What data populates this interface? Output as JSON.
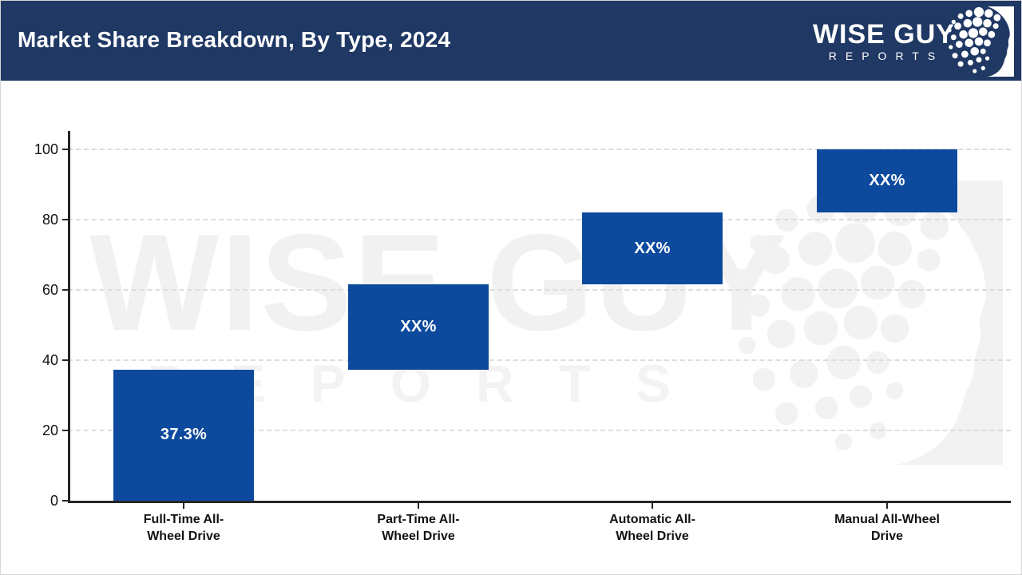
{
  "header": {
    "title": "Market Share Breakdown, By Type, 2024",
    "logo": {
      "name": "WISE GUY",
      "tagline": "REPORTS"
    }
  },
  "watermark": {
    "name": "WISE GUY",
    "tagline": "REPORTS"
  },
  "chart_data": {
    "type": "bar",
    "variant": "waterfall-floating-bars",
    "title": "Market Share Breakdown, By Type, 2024",
    "categories": [
      "Full-Time All-Wheel Drive",
      "Part-Time All-Wheel Drive",
      "Automatic All-Wheel Drive",
      "Manual All-Wheel Drive"
    ],
    "category_lines": [
      [
        "Full-Time All-",
        "Wheel Drive"
      ],
      [
        "Part-Time All-",
        "Wheel Drive"
      ],
      [
        "Automatic All-",
        "Wheel Drive"
      ],
      [
        "Manual All-Wheel",
        "Drive"
      ]
    ],
    "bar_labels": [
      "37.3%",
      "XX%",
      "XX%",
      "XX%"
    ],
    "segments": [
      {
        "start": 0,
        "end": 37.3
      },
      {
        "start": 37.3,
        "end": 61.5
      },
      {
        "start": 61.5,
        "end": 82.0
      },
      {
        "start": 82.0,
        "end": 100.0
      }
    ],
    "values_estimated": [
      37.3,
      24.2,
      20.5,
      18.0
    ],
    "xlabel": "",
    "ylabel": "",
    "ylim": [
      0,
      100
    ],
    "yticks": [
      0,
      20,
      40,
      60,
      80,
      100
    ],
    "grid": "horizontal-dashed",
    "legend": "none",
    "colors": {
      "bar": "#0d4a9e",
      "bar_label": "#ffffff",
      "header_bg": "#1f3864",
      "grid": "#dcdcdc",
      "axis": "#262626",
      "tick_text": "#111111",
      "watermark": "#f1f1f1"
    }
  }
}
